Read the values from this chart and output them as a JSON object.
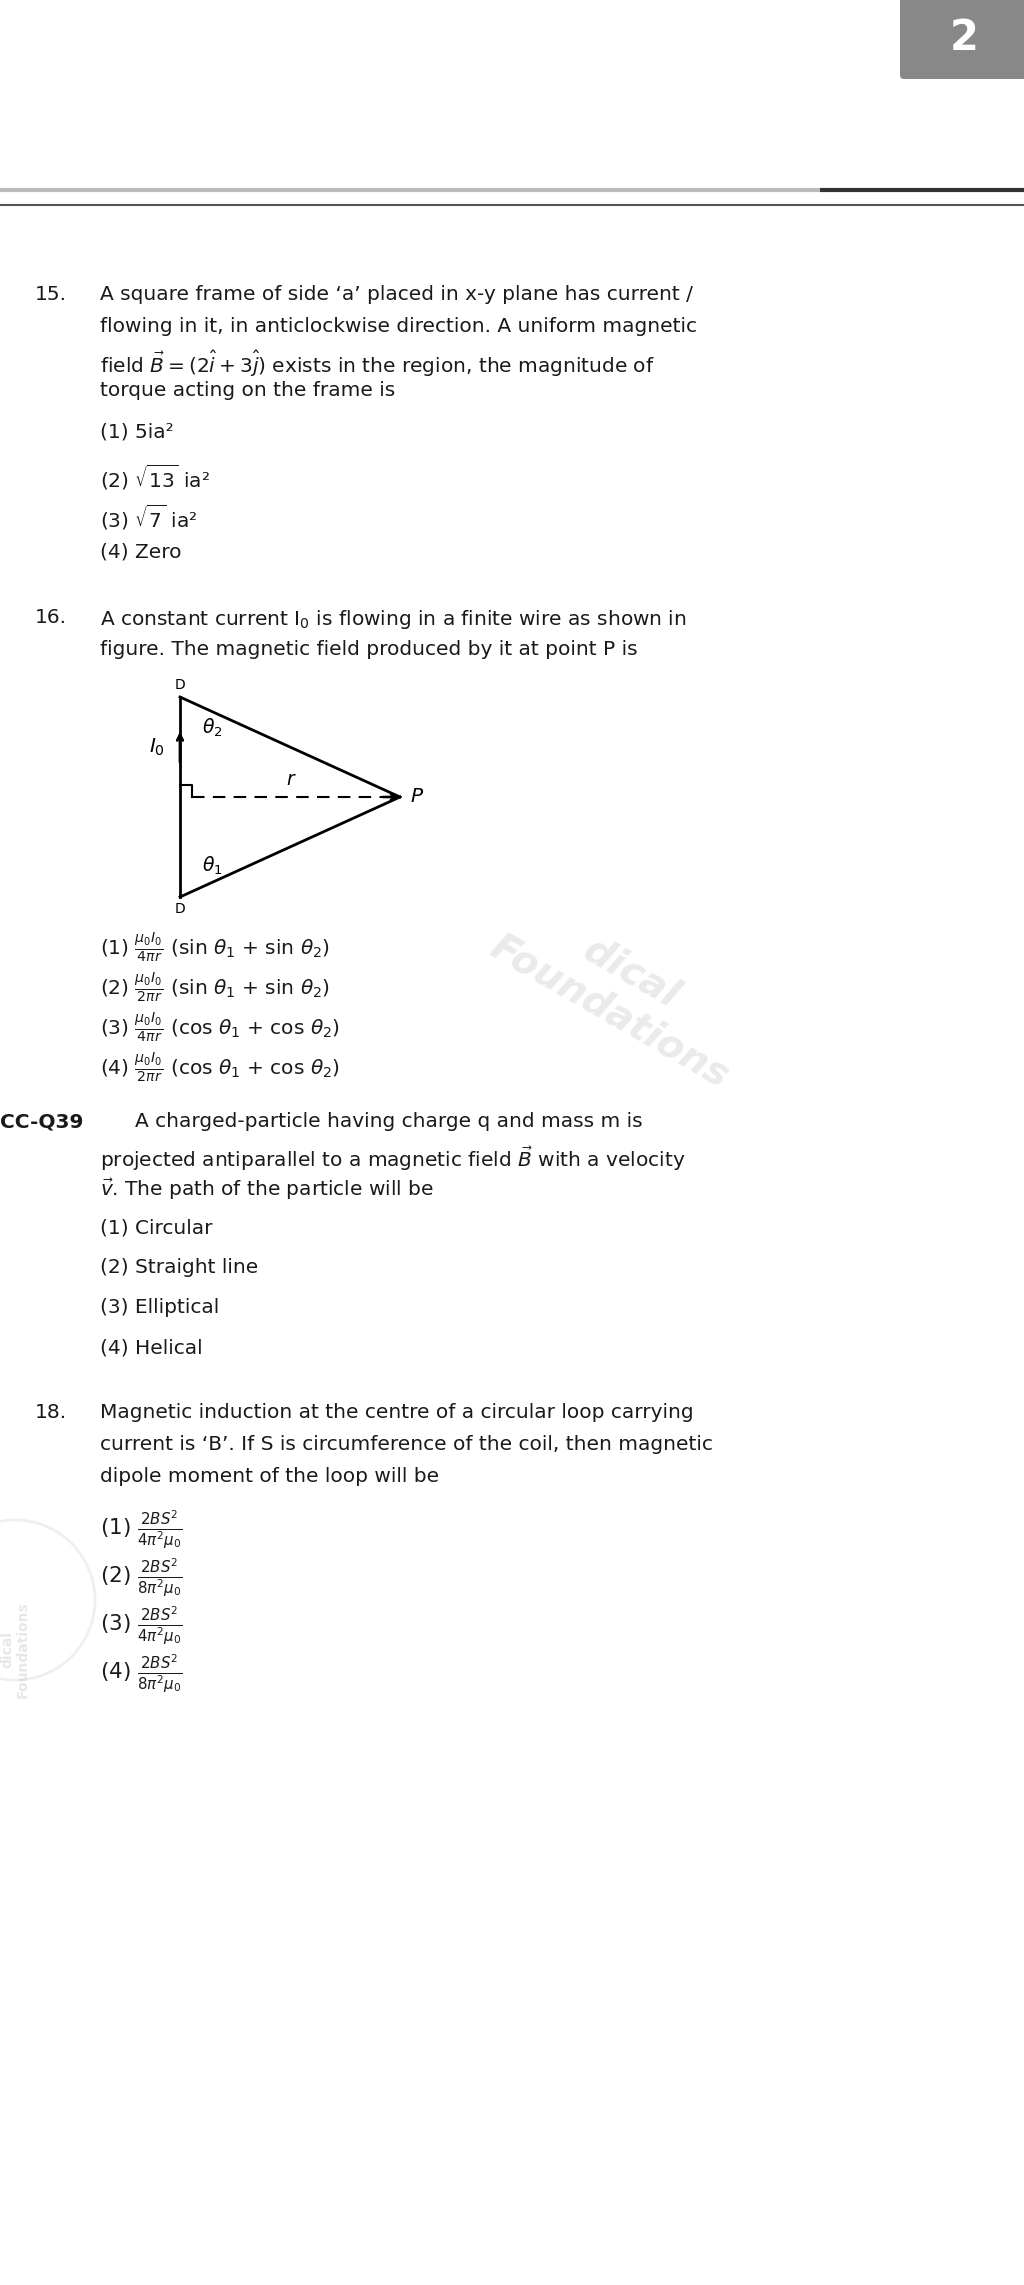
{
  "bg_color": "#ffffff",
  "page_number": "2",
  "header_bar_color": "#888888",
  "text_color": "#1a1a1a",
  "q15_lines": [
    "A square frame of side ‘a’ placed in x-y plane has current /",
    "flowing in it, in anticlockwise direction. A uniform magnetic",
    "field $\\vec{B} = (2\\hat{i} + 3\\hat{j})$ exists in the region, the magnitude of",
    "torque acting on the frame is"
  ],
  "q15_options": [
    "(1) 5ia²",
    "(2) $\\sqrt{13}$ ia²",
    "(3) $\\sqrt{7}$ ia²",
    "(4) Zero"
  ],
  "q16_lines": [
    "A constant current I$_0$ is flowing in a finite wire as shown in",
    "figure. The magnetic field produced by it at point P is"
  ],
  "q16_options": [
    "(1) $\\frac{\\mu_0 I_0}{4\\pi r}$ (sin $\\theta_1$ + sin $\\theta_2$)",
    "(2) $\\frac{\\mu_0 I_0}{2\\pi r}$ (sin $\\theta_1$ + sin $\\theta_2$)",
    "(3) $\\frac{\\mu_0 I_0}{4\\pi r}$ (cos $\\theta_1$ + cos $\\theta_2$)",
    "(4) $\\frac{\\mu_0 I_0}{2\\pi r}$ (cos $\\theta_1$ + cos $\\theta_2$)"
  ],
  "q17_lines": [
    "A charged-particle having charge q and mass m is",
    "projected antiparallel to a magnetic field $\\vec{B}$ with a velocity",
    "$\\vec{v}$. The path of the particle will be"
  ],
  "q17_options": [
    "(1) Circular",
    "(2) Straight line",
    "(3) Elliptical",
    "(4) Helical"
  ],
  "q18_lines": [
    "Magnetic induction at the centre of a circular loop carrying",
    "current is ‘B’. If S is circumference of the coil, then magnetic",
    "dipole moment of the loop will be"
  ],
  "q18_options": [
    "(1) $\\frac{2BS^2}{4\\pi^2\\mu_0}$",
    "(2) $\\frac{2BS^2}{8\\pi^2\\mu_0}$",
    "(3) $\\frac{2BS^2}{4\\pi^2\\mu_0}$",
    "(4) $\\frac{2BS^2}{8\\pi^2\\mu_0}$"
  ]
}
